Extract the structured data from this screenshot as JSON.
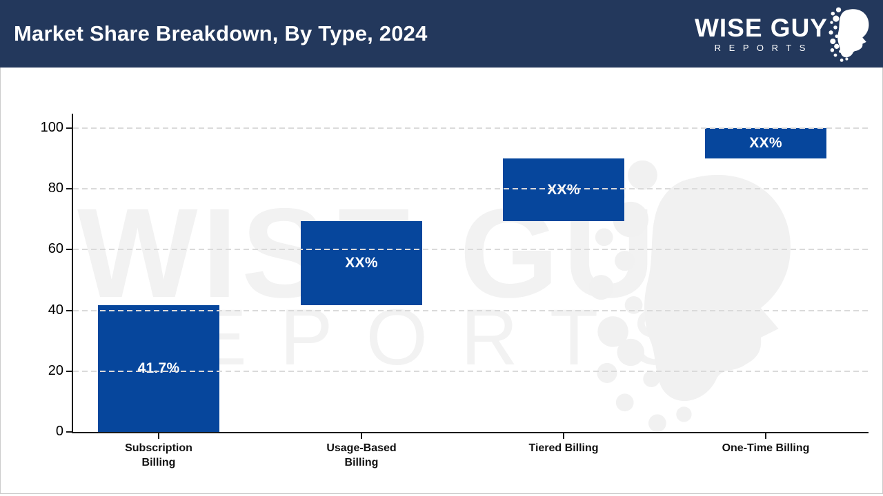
{
  "header": {
    "title": "Market Share Breakdown, By Type, 2024",
    "bg_color": "#23385C",
    "logo": {
      "line1": "WISE GUY",
      "line2": "R E P O R T S"
    }
  },
  "watermark": {
    "line1": "WISE GUY",
    "line2": "REPORTS"
  },
  "chart_data": {
    "type": "bar",
    "subtype": "waterfall",
    "title": "Market Share Breakdown, By Type, 2024",
    "categories": [
      "Subscription Billing",
      "Usage-Based Billing",
      "Tiered Billing",
      "One-Time Billing"
    ],
    "segments": [
      {
        "category": "Subscription Billing",
        "label_lines": [
          "Subscription",
          "Billing"
        ],
        "start": 0,
        "end": 41.7,
        "value_label": "41.7%"
      },
      {
        "category": "Usage-Based Billing",
        "label_lines": [
          "Usage-Based",
          "Billing"
        ],
        "start": 41.7,
        "end": 69.4,
        "value_label": "XX%"
      },
      {
        "category": "Tiered Billing",
        "label_lines": [
          "Tiered Billing"
        ],
        "start": 69.4,
        "end": 90,
        "value_label": "XX%"
      },
      {
        "category": "One-Time Billing",
        "label_lines": [
          "One-Time Billing"
        ],
        "start": 90,
        "end": 100,
        "value_label": "XX%"
      }
    ],
    "yticks": [
      0,
      20,
      40,
      60,
      80,
      100
    ],
    "ylim": [
      0,
      104
    ],
    "xlabel": "",
    "ylabel": "",
    "grid": "horizontal dashed",
    "bar_color": "#06469C",
    "value_label_color": "#ffffff",
    "axis_color": "#1a1a1a",
    "grid_color": "#DADADA"
  }
}
